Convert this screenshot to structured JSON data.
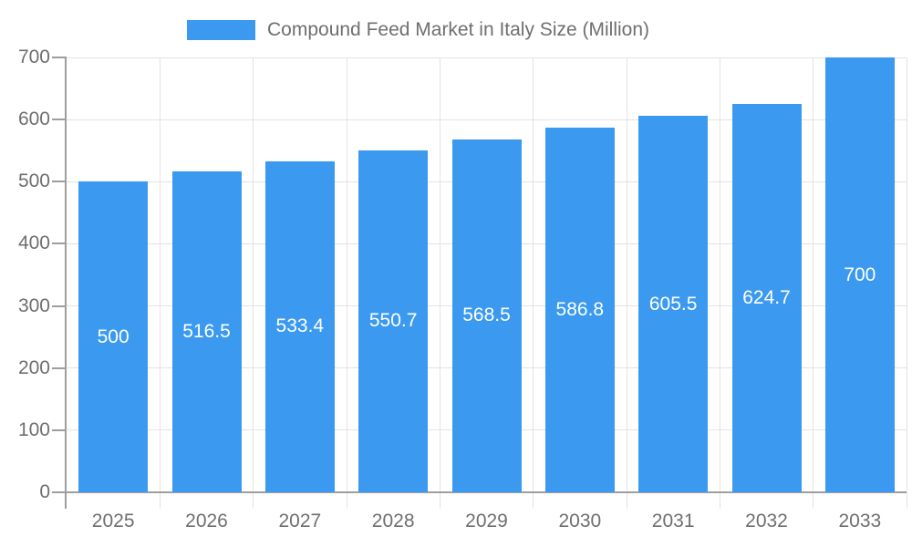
{
  "chart_data": {
    "type": "bar",
    "title": "Compound Feed Market in Italy Size (Million)",
    "legend_position": "top",
    "legend": [
      {
        "label": "Compound Feed Market in Italy Size (Million)",
        "color": "#3b9af0"
      }
    ],
    "categories": [
      "2025",
      "2026",
      "2027",
      "2028",
      "2029",
      "2030",
      "2031",
      "2032",
      "2033"
    ],
    "series": [
      {
        "name": "Compound Feed Market in Italy Size (Million)",
        "values": [
          500,
          516.5,
          533.4,
          550.7,
          568.5,
          586.8,
          605.5,
          624.7,
          700
        ],
        "value_labels": [
          "500",
          "516.5",
          "533.4",
          "550.7",
          "568.5",
          "586.8",
          "605.5",
          "624.7",
          "700"
        ]
      }
    ],
    "xlabel": "",
    "ylabel": "",
    "ylim": [
      0,
      700
    ],
    "yticks": [
      0,
      100,
      200,
      300,
      400,
      500,
      600,
      700
    ],
    "grid": true,
    "value_labels_inside_bars": true,
    "colors": {
      "bar": "#3b9af0",
      "value_label": "#ffffff",
      "axis_line": "#9e9e9e",
      "gridline": "#e3e3e3",
      "tick_text": "#6f6f6f",
      "legend_text": "#6f6f6f",
      "background": "#ffffff"
    }
  }
}
